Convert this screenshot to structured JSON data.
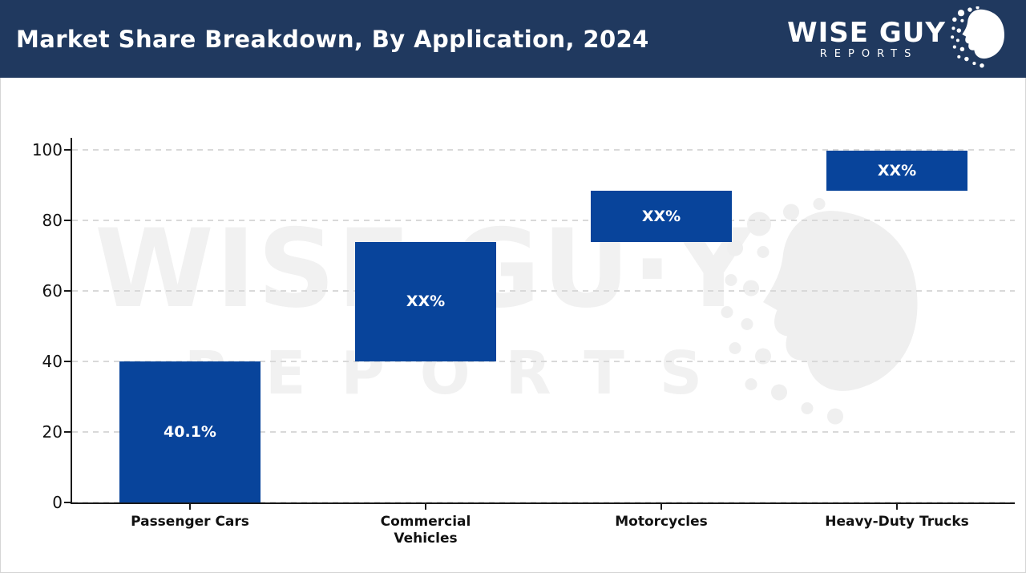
{
  "header": {
    "title": "Market Share Breakdown, By Application, 2024",
    "logo": {
      "wordmark": "WISE GUY",
      "subtext": "REPORTS"
    }
  },
  "watermark": {
    "wordmark": "WISE GU·Y",
    "subtext": "REPORTS"
  },
  "chart_data": {
    "type": "bar",
    "subtype": "waterfall-segments",
    "title": "Market Share Breakdown, By Application, 2024",
    "categories": [
      "Passenger Cars",
      "Commercial Vehicles",
      "Motorcycles",
      "Heavy-Duty Trucks"
    ],
    "xtick_labels": [
      "Passenger Cars",
      "Commercial\nVehicles",
      "Motorcycles",
      "Heavy-Duty Trucks"
    ],
    "segments": [
      {
        "category": "Passenger Cars",
        "start": 0,
        "end": 40.1,
        "label": "40.1%"
      },
      {
        "category": "Commercial Vehicles",
        "start": 40.1,
        "end": 73.9,
        "label": "XX%"
      },
      {
        "category": "Motorcycles",
        "start": 73.9,
        "end": 88.4,
        "label": "XX%"
      },
      {
        "category": "Heavy-Duty Trucks",
        "start": 88.4,
        "end": 99.8,
        "label": "XX%"
      }
    ],
    "yticks": [
      0,
      20,
      40,
      60,
      80,
      100
    ],
    "ylim": [
      0,
      103.4
    ],
    "xlabel": "",
    "ylabel": "",
    "grid": "horizontal-dashed",
    "legend": "none",
    "bar_color": "#08449b",
    "bar_label_color": "#ffffff",
    "axis_color": "#1a1a1a",
    "gridline_color": "#d9d9d9",
    "header_bg": "#20395f",
    "watermark_color": "#f1f1f1"
  }
}
